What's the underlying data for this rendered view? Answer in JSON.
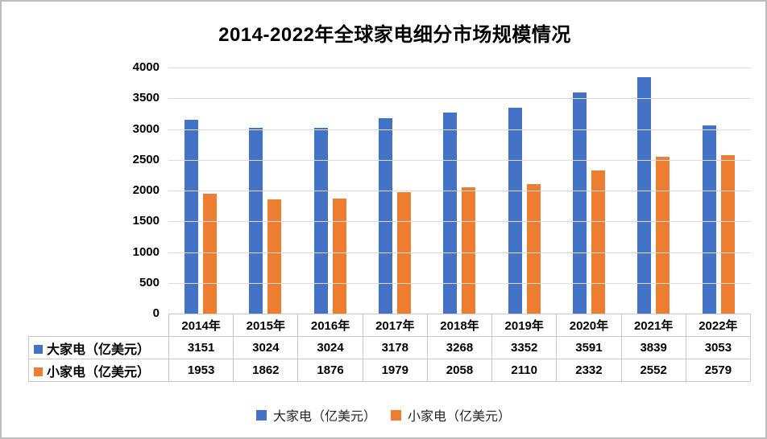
{
  "title": "2014-2022年全球家电细分市场规模情况",
  "chart_data": {
    "type": "bar",
    "title": "2014-2022年全球家电细分市场规模情况",
    "categories": [
      "2014年",
      "2015年",
      "2016年",
      "2017年",
      "2018年",
      "2019年",
      "2020年",
      "2021年",
      "2022年"
    ],
    "series": [
      {
        "name": "大家电（亿美元）",
        "color": "#4472c4",
        "values": [
          3151,
          3024,
          3024,
          3178,
          3268,
          3352,
          3591,
          3839,
          3053
        ]
      },
      {
        "name": "小家电（亿美元）",
        "color": "#ed7d31",
        "values": [
          1953,
          1862,
          1876,
          1979,
          2058,
          2110,
          2332,
          2552,
          2579
        ]
      }
    ],
    "xlabel": "",
    "ylabel": "",
    "ylim": [
      0,
      4000
    ],
    "yticks": [
      0,
      500,
      1000,
      1500,
      2000,
      2500,
      3000,
      3500,
      4000
    ],
    "grid": true,
    "legend_position": "bottom",
    "data_table_shown": true
  },
  "colors": {
    "series_blue": "#4472c4",
    "series_orange": "#ed7d31",
    "gridline": "#dcdcdc",
    "table_border": "#c9c9c9",
    "frame_border": "#bdbdbd",
    "background": "#ffffff"
  }
}
